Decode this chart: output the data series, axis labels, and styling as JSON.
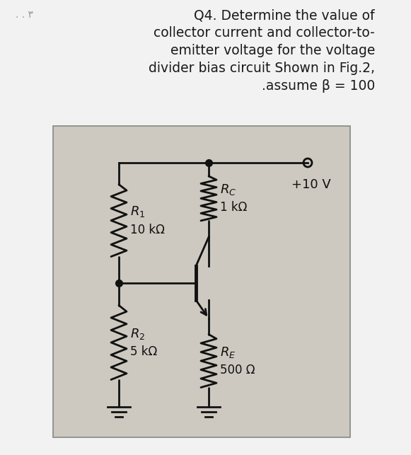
{
  "title_line1": "Q4. Determine the value of",
  "title_line2": "collector current and collector-to-",
  "title_line3": "emitter voltage for the voltage",
  "title_line4": "divider bias circuit Shown in Fig.2,",
  "title_line5": ".assume β = 100",
  "corner_text": ". . ٣",
  "page_bg": "#f2f2f2",
  "circuit_bg": "#cdc9c0",
  "text_color": "#1a1a1a",
  "circuit_line_color": "#111111",
  "R1_value": "10 kΩ",
  "R2_value": "5 kΩ",
  "RC_value": "1 kΩ",
  "RE_value": "500 Ω",
  "VCC_label": "+10 V",
  "title_fontsize": 13.5,
  "circuit_fontsize": 12,
  "label_fontsize": 13
}
